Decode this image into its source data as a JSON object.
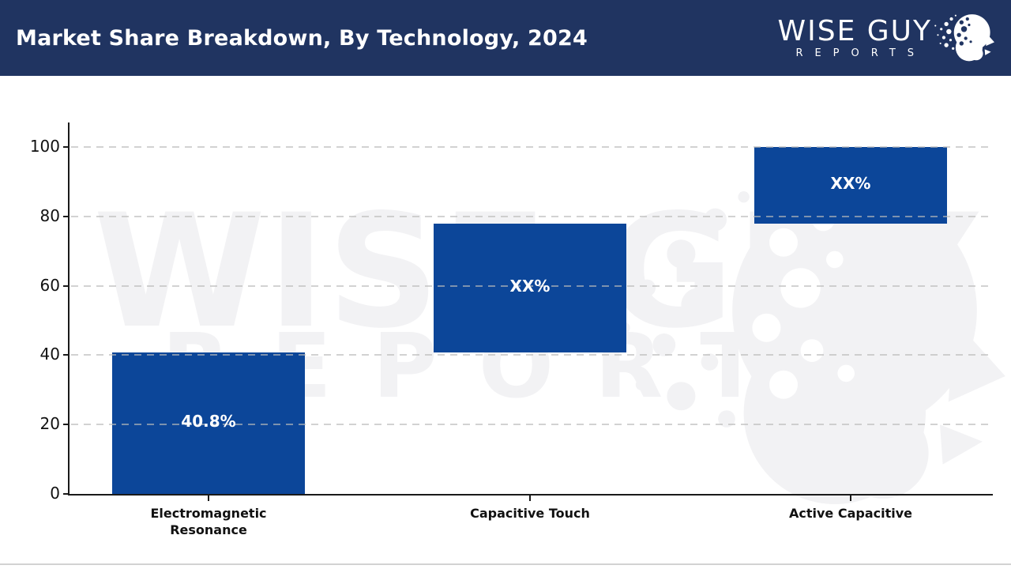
{
  "header": {
    "title": "Market Share Breakdown, By Technology, 2024",
    "bg_color": "#203461",
    "logo": {
      "brand_top": "WISE GUY",
      "brand_bottom": "REPORTS",
      "head_icon": "dotted-head-profile"
    }
  },
  "watermark": {
    "line1": "WISE GUY",
    "line2": "REPORTS",
    "head_icon": "dotted-head-profile",
    "color": "#f2f2f4"
  },
  "chart_data": {
    "type": "bar",
    "subtype": "floating-waterfall",
    "title": "Market Share Breakdown, By Technology, 2024",
    "categories": [
      "Electromagnetic Resonance",
      "Capacitive Touch",
      "Active Capacitive"
    ],
    "series": [
      {
        "name": "Market share (%)",
        "segments": [
          {
            "category": "Electromagnetic Resonance",
            "from": 0,
            "to": 40.8,
            "label": "40.8%"
          },
          {
            "category": "Capacitive Touch",
            "from": 40.8,
            "to": 78,
            "label": "XX%"
          },
          {
            "category": "Active Capacitive",
            "from": 78,
            "to": 100,
            "label": "XX%"
          }
        ]
      }
    ],
    "ylim": [
      0,
      100
    ],
    "yticks": [
      0,
      20,
      40,
      60,
      80,
      100
    ],
    "xlabel": "",
    "ylabel": "",
    "grid": "horizontal-dashed",
    "legend": "none",
    "colors": {
      "bar": "#0c4699",
      "bar_label": "#ffffff",
      "grid": "#d4d4d4",
      "axis": "#1a1a1a",
      "tick_label": "#111111"
    }
  }
}
